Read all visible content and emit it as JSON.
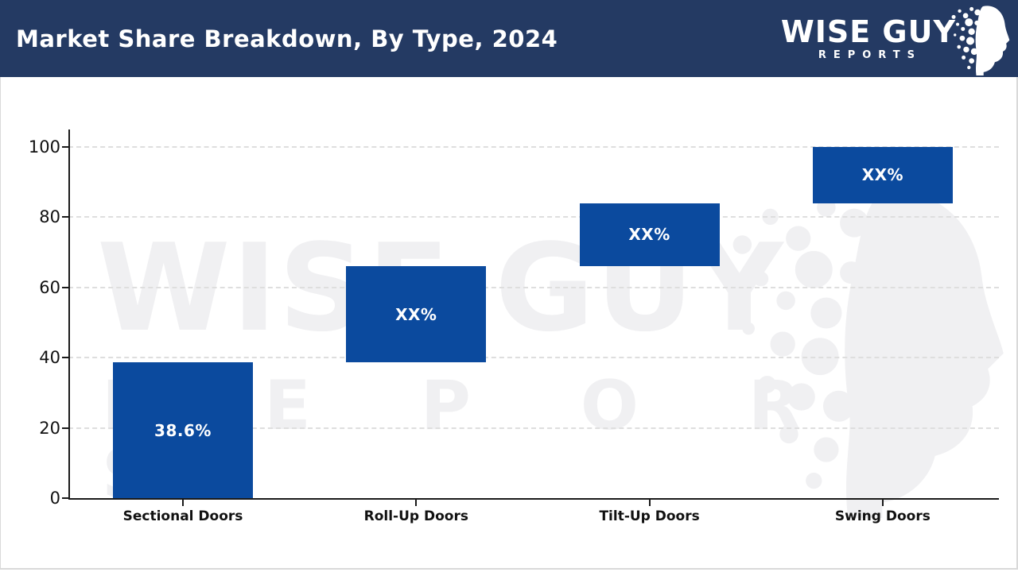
{
  "header": {
    "title": "Market Share Breakdown, By Type, 2024",
    "background_color": "#243a63",
    "logo": {
      "line1": "WISE GUY",
      "line2": "REPORTS",
      "face_icon": "dotted-head-profile"
    }
  },
  "watermark": {
    "line1": "WISE GUY",
    "line2": "R E P O R T S",
    "face_icon": "dotted-head-profile",
    "color": "#f0f0f2"
  },
  "chart_data": {
    "type": "bar",
    "subtype": "floating-waterfall",
    "title": "Market Share Breakdown, By Type, 2024",
    "categories": [
      "Sectional Doors",
      "Roll-Up Doors",
      "Tilt-Up Doors",
      "Swing Doors"
    ],
    "bars": [
      {
        "category": "Sectional Doors",
        "start": 0,
        "end": 38.6,
        "label": "38.6%"
      },
      {
        "category": "Roll-Up Doors",
        "start": 38.6,
        "end": 66,
        "label": "XX%"
      },
      {
        "category": "Tilt-Up Doors",
        "start": 66,
        "end": 84,
        "label": "XX%"
      },
      {
        "category": "Swing Doors",
        "start": 84,
        "end": 100,
        "label": "XX%"
      }
    ],
    "yticks": [
      0,
      20,
      40,
      60,
      80,
      100
    ],
    "ylim": [
      0,
      105
    ],
    "xlabel": "",
    "ylabel": "",
    "grid": "horizontal-dashed",
    "legend": "none",
    "bar_color": "#0b4a9e",
    "bar_label_color": "#ffffff",
    "axis_color": "#1a1a1a",
    "gridline_color": "#dedede"
  }
}
